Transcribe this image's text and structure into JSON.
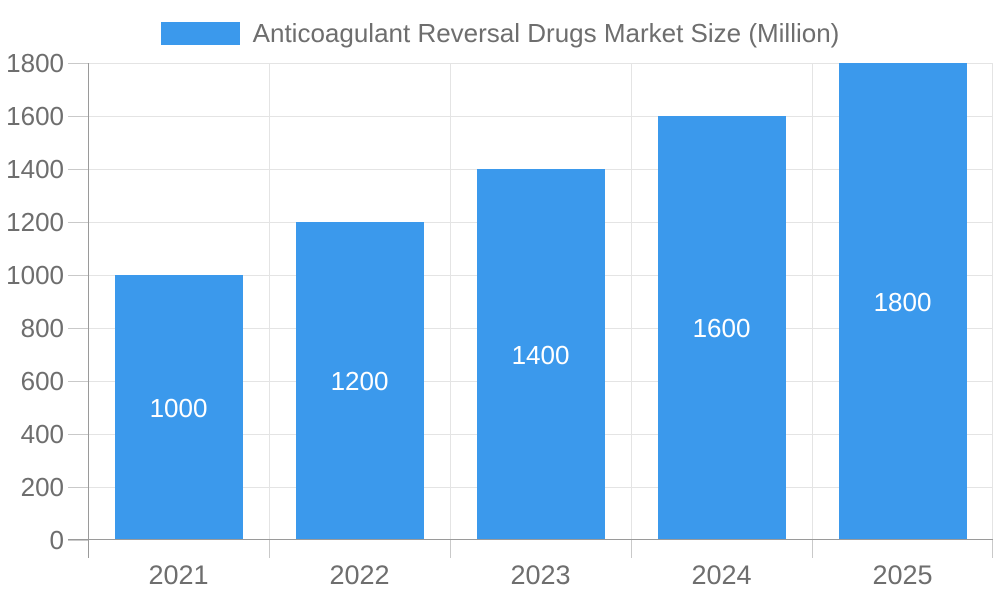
{
  "legend": {
    "label": "Anticoagulant Reversal Drugs Market Size (Million)"
  },
  "chart_data": {
    "type": "bar",
    "title": "Anticoagulant Reversal Drugs Market Size (Million)",
    "series_name": "Anticoagulant Reversal Drugs Market Size (Million)",
    "categories": [
      "2021",
      "2022",
      "2023",
      "2024",
      "2025"
    ],
    "values": [
      1000,
      1200,
      1400,
      1600,
      1800
    ],
    "bar_value_labels": [
      "1000",
      "1200",
      "1400",
      "1600",
      "1800"
    ],
    "xlabel": "",
    "ylabel": "",
    "ylim": [
      0,
      1800
    ],
    "ytick_step": 200,
    "yticks": [
      0,
      200,
      400,
      600,
      800,
      1000,
      1200,
      1400,
      1600,
      1800
    ],
    "grid": true,
    "legend_position": "top-center",
    "value_labels_position": "inside-center",
    "colors": {
      "bar": "#3b99ec",
      "bar_label": "#ffffff",
      "axis_text": "#6e6e6e",
      "gridline": "#e4e4e4",
      "tick": "#c9c9c9",
      "axis_line": "#9a9a9a",
      "background": "#ffffff"
    }
  }
}
